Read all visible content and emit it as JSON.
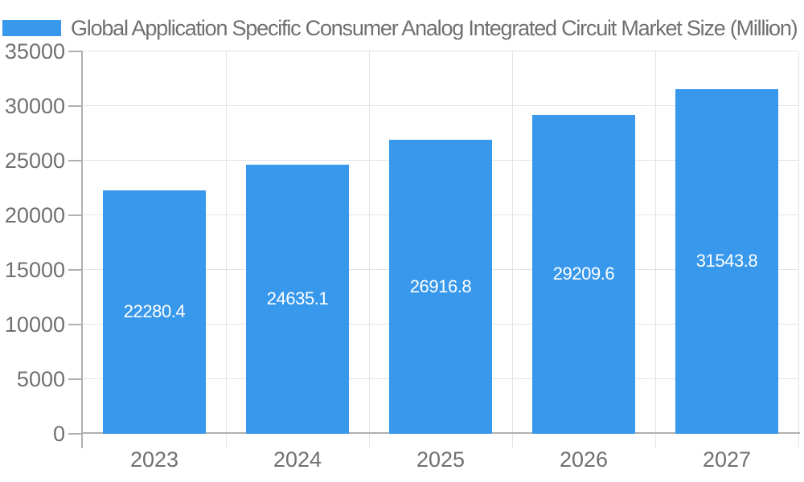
{
  "chart_data": {
    "type": "bar",
    "title": "Global Application Specific Consumer Analog Integrated Circuit Market Size (Million)",
    "legend": [
      "Global Application Specific Consumer Analog Integrated Circuit Market Size (Million)"
    ],
    "legend_position": "top-left",
    "categories": [
      "2023",
      "2024",
      "2025",
      "2026",
      "2027"
    ],
    "values": [
      22280.4,
      24635.1,
      26916.8,
      29209.6,
      31543.8
    ],
    "bar_labels": [
      "22280.4",
      "24635.1",
      "26916.8",
      "29209.6",
      "31543.8"
    ],
    "xlabel": "",
    "ylabel": "",
    "ylim": [
      0,
      35000
    ],
    "yticks": [
      0,
      5000,
      10000,
      15000,
      20000,
      25000,
      30000,
      35000
    ],
    "grid": true,
    "colors": {
      "bar": "#3898ec",
      "axis": "#b0b0b0",
      "grid": "#e3e3e3",
      "text": "#707070",
      "bar_label": "#ffffff",
      "background": "#ffffff"
    }
  }
}
